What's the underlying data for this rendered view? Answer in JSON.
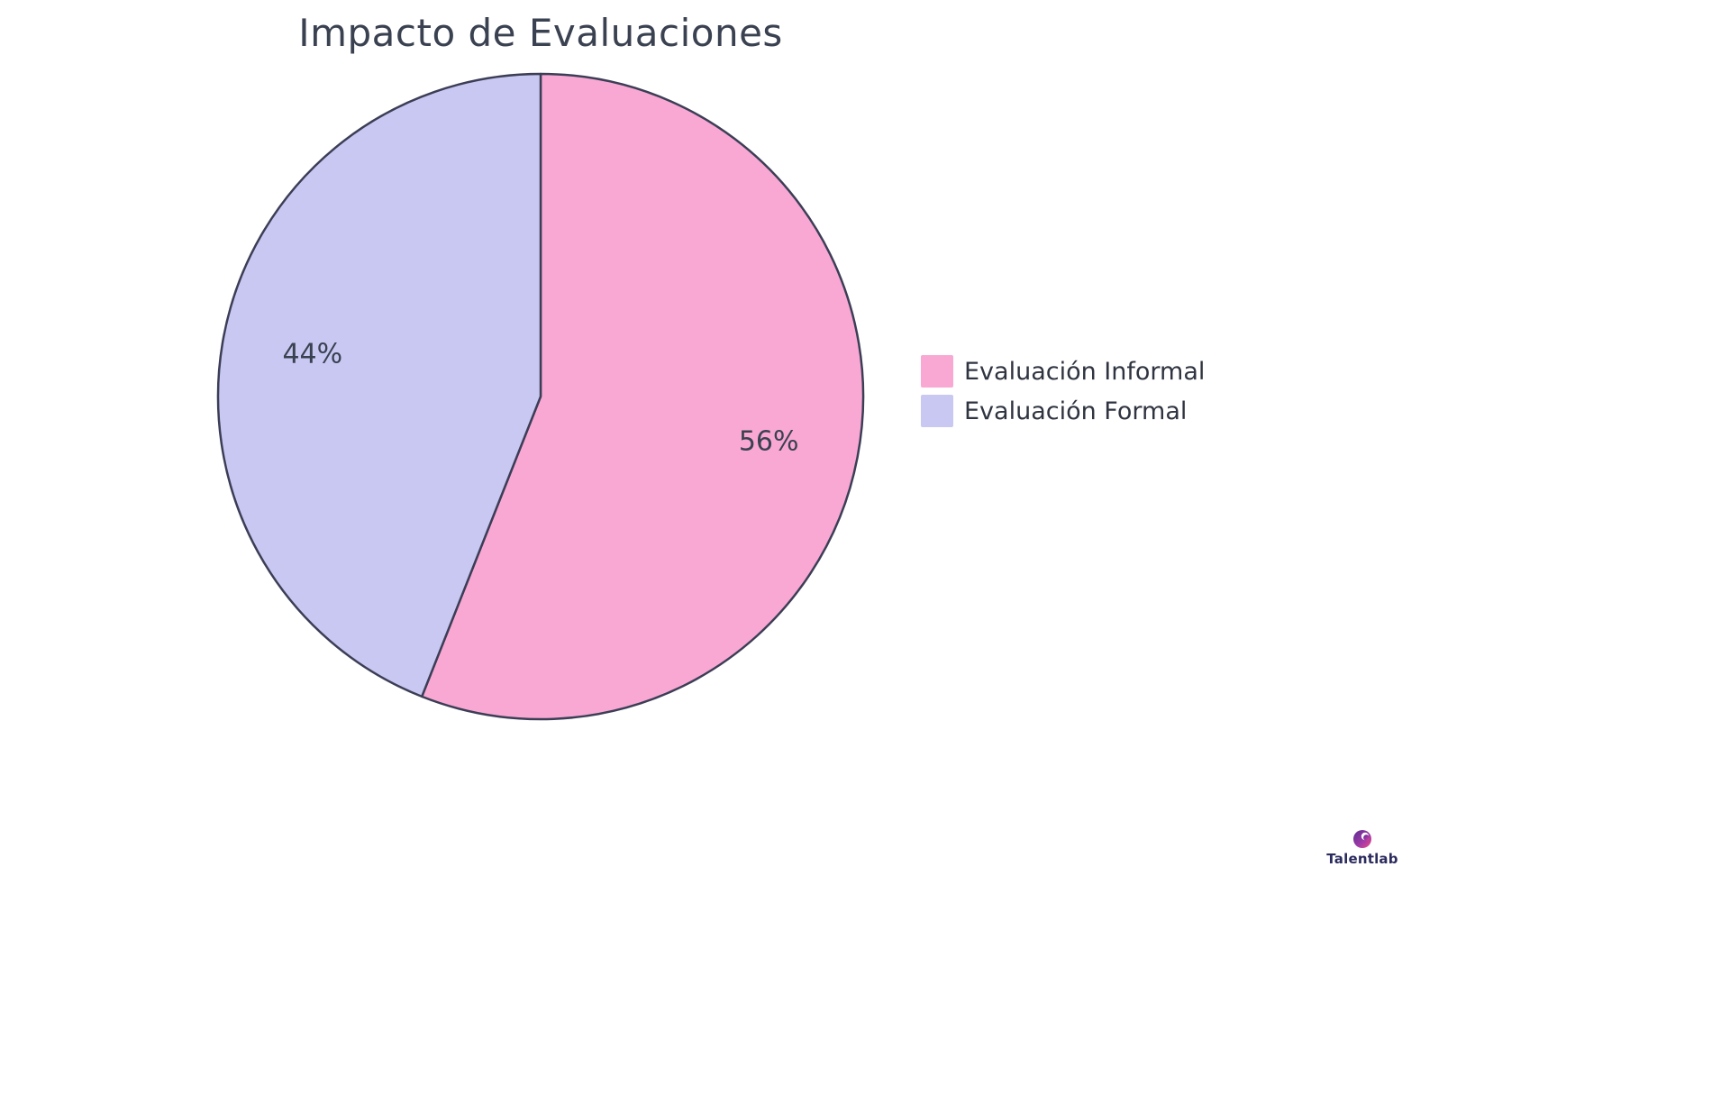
{
  "page": {
    "background": "#FFFFFF"
  },
  "chart_data": {
    "type": "pie",
    "title": "Impacto de Evaluaciones",
    "labels": [
      "Evaluación Informal",
      "Evaluación Formal"
    ],
    "values": [
      56,
      44
    ],
    "value_labels": [
      "56%",
      "44%"
    ],
    "colors": [
      "#F9A8D4",
      "#C9C8F3"
    ],
    "stroke_color": "#3C3E56",
    "label_color": "#3A4150",
    "start_angle_deg": -90,
    "direction": "clockwise",
    "legend_position": "right",
    "legend_entries": [
      "Evaluación Informal",
      "Evaluación Formal"
    ]
  },
  "branding": {
    "logo_text": "Talentlab"
  }
}
